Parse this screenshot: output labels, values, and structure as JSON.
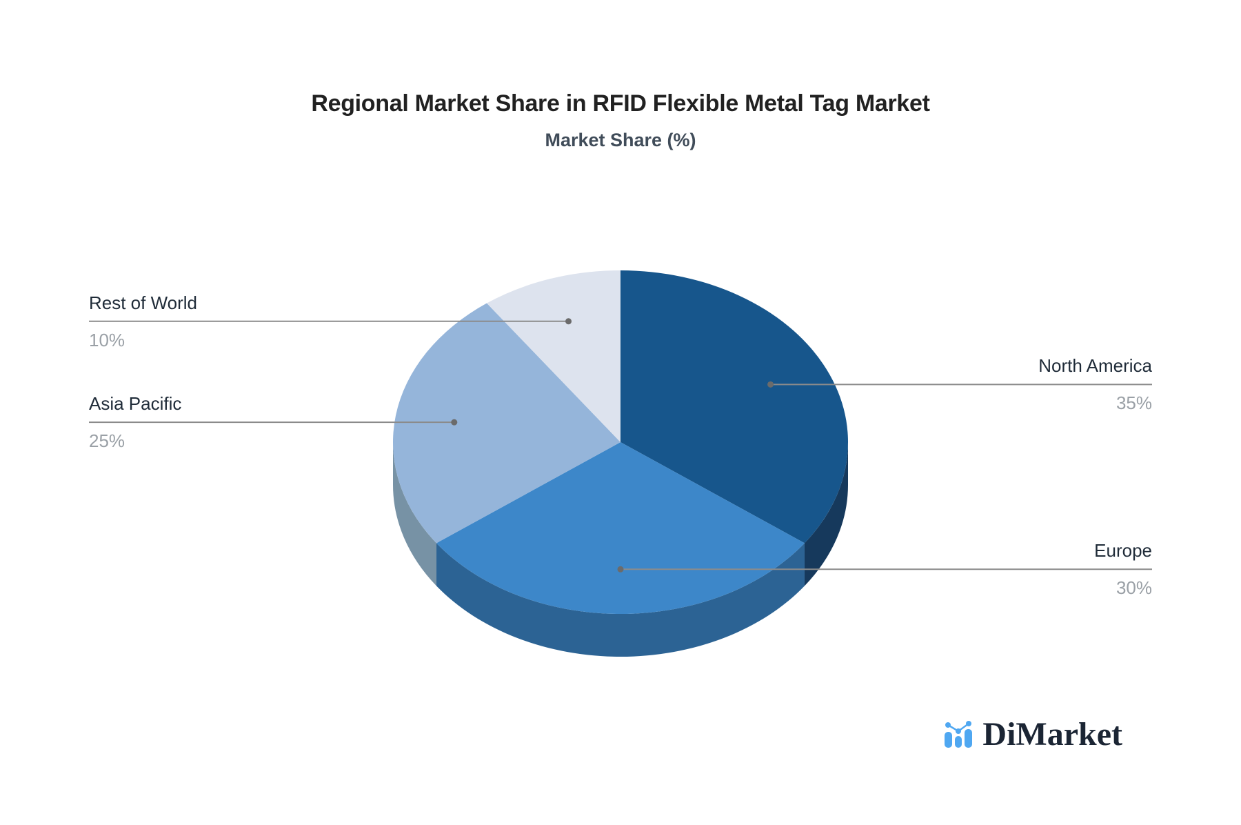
{
  "chart_data": {
    "type": "pie",
    "title": "Regional Market Share in RFID Flexible Metal Tag Market",
    "subtitle": "Market Share (%)",
    "unit": "%",
    "effect": "3d",
    "start_angle_deg": 0,
    "direction": "clockwise",
    "legend_position": "none",
    "label_style": "callout-lines",
    "labels": [
      "North America",
      "Europe",
      "Asia Pacific",
      "Rest of World"
    ],
    "values": [
      35,
      30,
      25,
      10
    ],
    "display_values": [
      "35%",
      "30%",
      "25%",
      "10%"
    ],
    "colors": [
      "#17568C",
      "#3D87C9",
      "#95B5DA",
      "#DDE3EE"
    ],
    "side_colors": [
      "#16395C",
      "#2C6394",
      "#7792A5",
      "#B9C3D2"
    ]
  },
  "style": {
    "background": "#ffffff",
    "title_color": "#212121",
    "subtitle_color": "#404C59",
    "label_name_color": "#1F2B38",
    "label_value_color": "#9AA0A6",
    "leader_line_color": "#8B8B8B",
    "leader_dot_color": "#6B6B6B"
  },
  "branding": {
    "logo_text": "DiMarket",
    "logo_icon": "bar-chart-trend-icon",
    "logo_text_color": "#1B2534",
    "logo_accent_color": "#4FA7F1"
  }
}
